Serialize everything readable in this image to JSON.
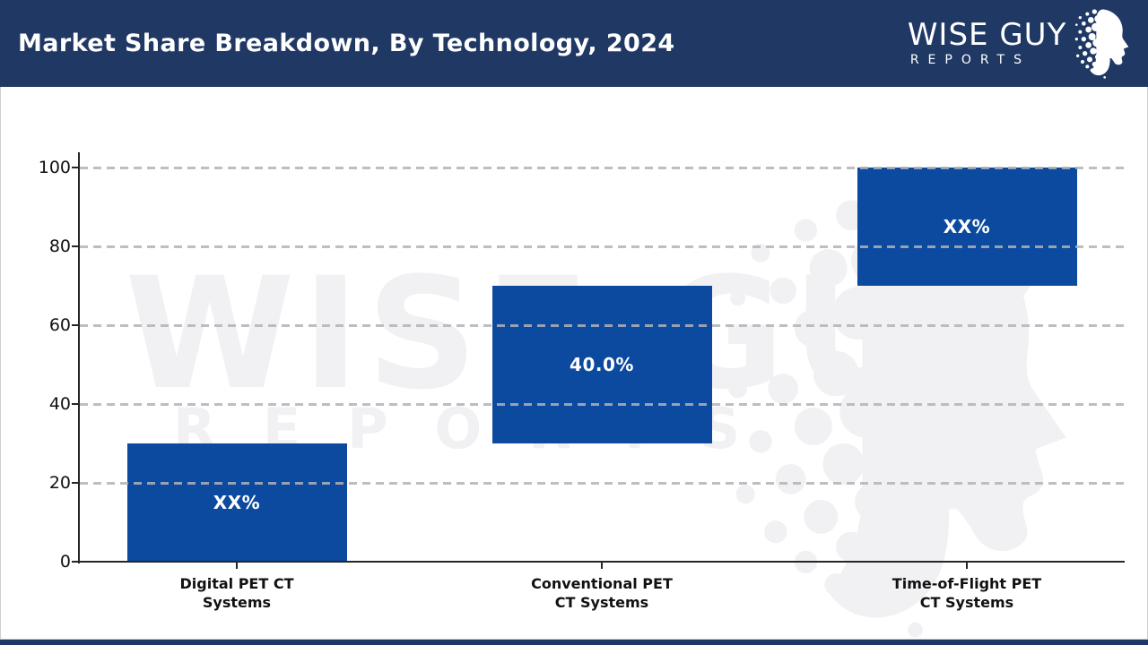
{
  "header": {
    "title": "Market Share Breakdown, By Technology, 2024",
    "logo": {
      "line1": "WISE GUY",
      "line2": "REPORTS"
    }
  },
  "watermark": {
    "line1": "WISE GUY",
    "line2": "REPORTS"
  },
  "chart_data": {
    "type": "bar",
    "variant": "floating-segment-waterfall",
    "title": "Market Share Breakdown, By Technology, 2024",
    "categories": [
      "Digital PET CT Systems",
      "Conventional PET CT Systems",
      "Time-of-Flight PET CT Systems"
    ],
    "category_label_lines": [
      [
        "Digital PET CT",
        "Systems"
      ],
      [
        "Conventional PET",
        "CT Systems"
      ],
      [
        "Time-of-Flight PET",
        "CT Systems"
      ]
    ],
    "segments": [
      {
        "category": "Digital PET CT Systems",
        "start": 0,
        "end": 30,
        "label": "XX%"
      },
      {
        "category": "Conventional PET CT Systems",
        "start": 30,
        "end": 70,
        "label": "40.0%"
      },
      {
        "category": "Time-of-Flight PET CT Systems",
        "start": 70,
        "end": 100,
        "label": "XX%"
      }
    ],
    "ylim": [
      0,
      100
    ],
    "yticks": [
      0,
      20,
      40,
      60,
      80,
      100
    ],
    "grid": "horizontal-dashed-over-bars",
    "legend": "none",
    "xlabel": "",
    "ylabel": ""
  },
  "colors": {
    "header_bg": "#203864",
    "footer_bar": "#203864",
    "bar": "#0B4A9E",
    "bar_label": "#FFFFFF",
    "grid": "#D4D4D8",
    "axis": "#262626",
    "tick_label": "#111111",
    "watermark": "#F1F1F4",
    "body_border": "#CFCFCF"
  }
}
